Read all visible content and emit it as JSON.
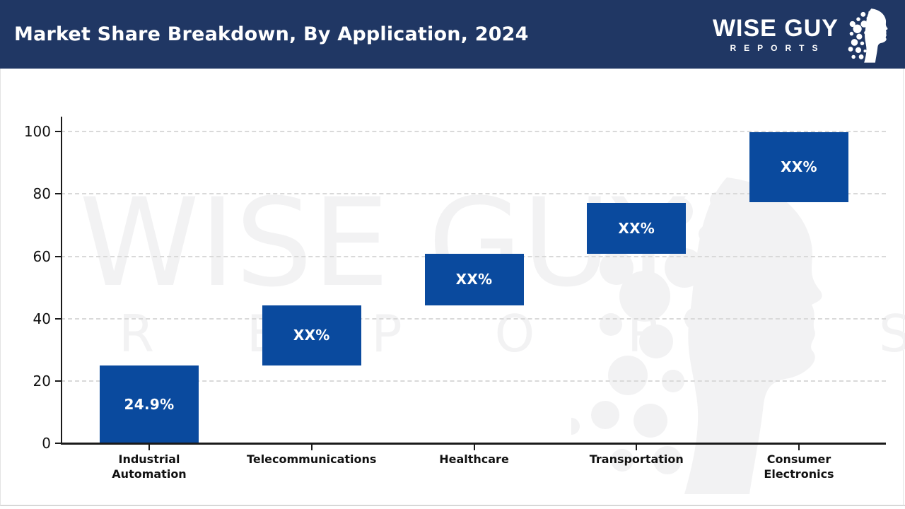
{
  "header": {
    "title": "Market Share Breakdown, By Application, 2024",
    "logo": {
      "name": "WISE GUY",
      "sub": "REPORTS"
    }
  },
  "watermark": {
    "line1": "WISE GUY",
    "line2": "R E P O R T S"
  },
  "colors": {
    "header_bg": "#203764",
    "bar": "#0a4a9e",
    "axis": "#1a1a1a",
    "gridline": "#d9d9d9",
    "watermark": "#f2f2f3",
    "bar_label": "#ffffff"
  },
  "chart_data": {
    "type": "bar",
    "variant": "floating_waterfall",
    "title": "Market Share Breakdown, By Application, 2024",
    "xlabel": "",
    "ylabel": "",
    "categories": [
      "Industrial Automation",
      "Telecommunications",
      "Healthcare",
      "Transportation",
      "Consumer Electronics"
    ],
    "category_label_lines": [
      [
        "Industrial",
        "Automation"
      ],
      [
        "Telecommunications"
      ],
      [
        "Healthcare"
      ],
      [
        "Transportation"
      ],
      [
        "Consumer",
        "Electronics"
      ]
    ],
    "segments": [
      {
        "category": "Industrial Automation",
        "start": 0,
        "end": 24.9,
        "label": "24.9%"
      },
      {
        "category": "Telecommunications",
        "start": 25.0,
        "end": 44.3,
        "label": "XX%"
      },
      {
        "category": "Healthcare",
        "start": 44.3,
        "end": 60.8,
        "label": "XX%"
      },
      {
        "category": "Transportation",
        "start": 60.8,
        "end": 77.1,
        "label": "XX%"
      },
      {
        "category": "Consumer Electronics",
        "start": 77.4,
        "end": 99.9,
        "label": "XX%"
      }
    ],
    "yticks": [
      0,
      20,
      40,
      60,
      80,
      100
    ],
    "ylim": [
      0,
      104.8
    ],
    "grid": "horizontal_dashed",
    "legend": "none"
  }
}
